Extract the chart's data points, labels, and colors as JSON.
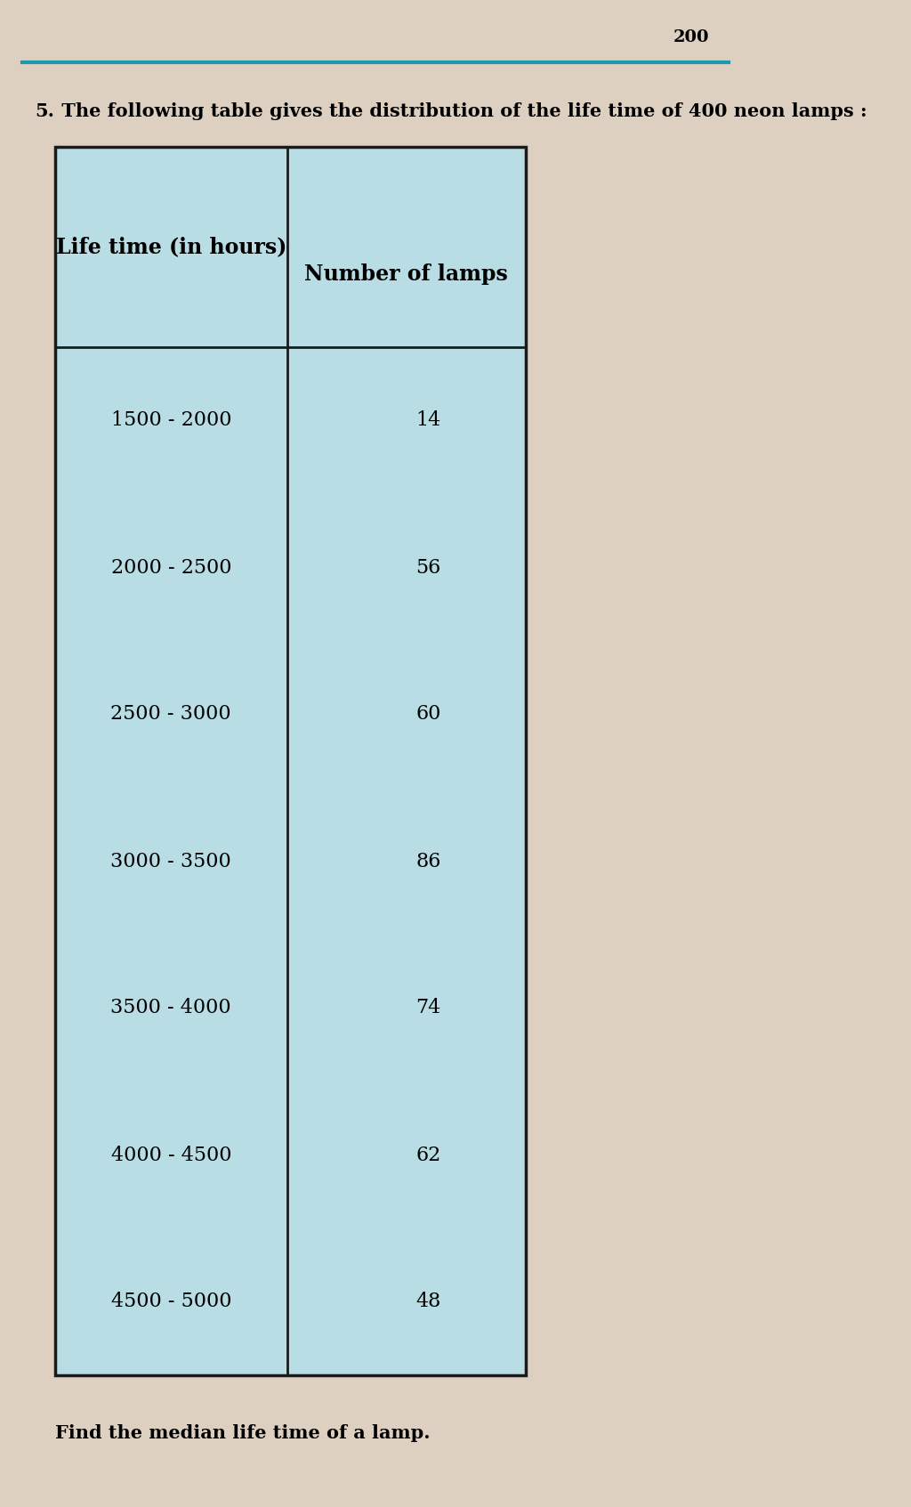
{
  "page_number": "200",
  "question_number": "5.",
  "question_text": " The following table gives the distribution of the life time of 400 neon lamps :",
  "col1_header": "Life time (in hours)",
  "col2_header": "Number of lamps",
  "rows": [
    [
      "1500 - 2000",
      "14"
    ],
    [
      "2000 - 2500",
      "56"
    ],
    [
      "2500 - 3000",
      "60"
    ],
    [
      "3000 - 3500",
      "86"
    ],
    [
      "3500 - 4000",
      "74"
    ],
    [
      "4000 - 4500",
      "62"
    ],
    [
      "4500 - 5000",
      "48"
    ]
  ],
  "footer_text": "Find the median life time of a lamp.",
  "bg_color": "#b8dde4",
  "table_border_color": "#1a1a1a",
  "page_bg_color": "#ddd0c0",
  "teal_line_color": "#1a9aaa",
  "header_fontsize": 17,
  "cell_fontsize": 16,
  "question_fontsize": 15,
  "page_num_fontsize": 14,
  "footer_fontsize": 15
}
